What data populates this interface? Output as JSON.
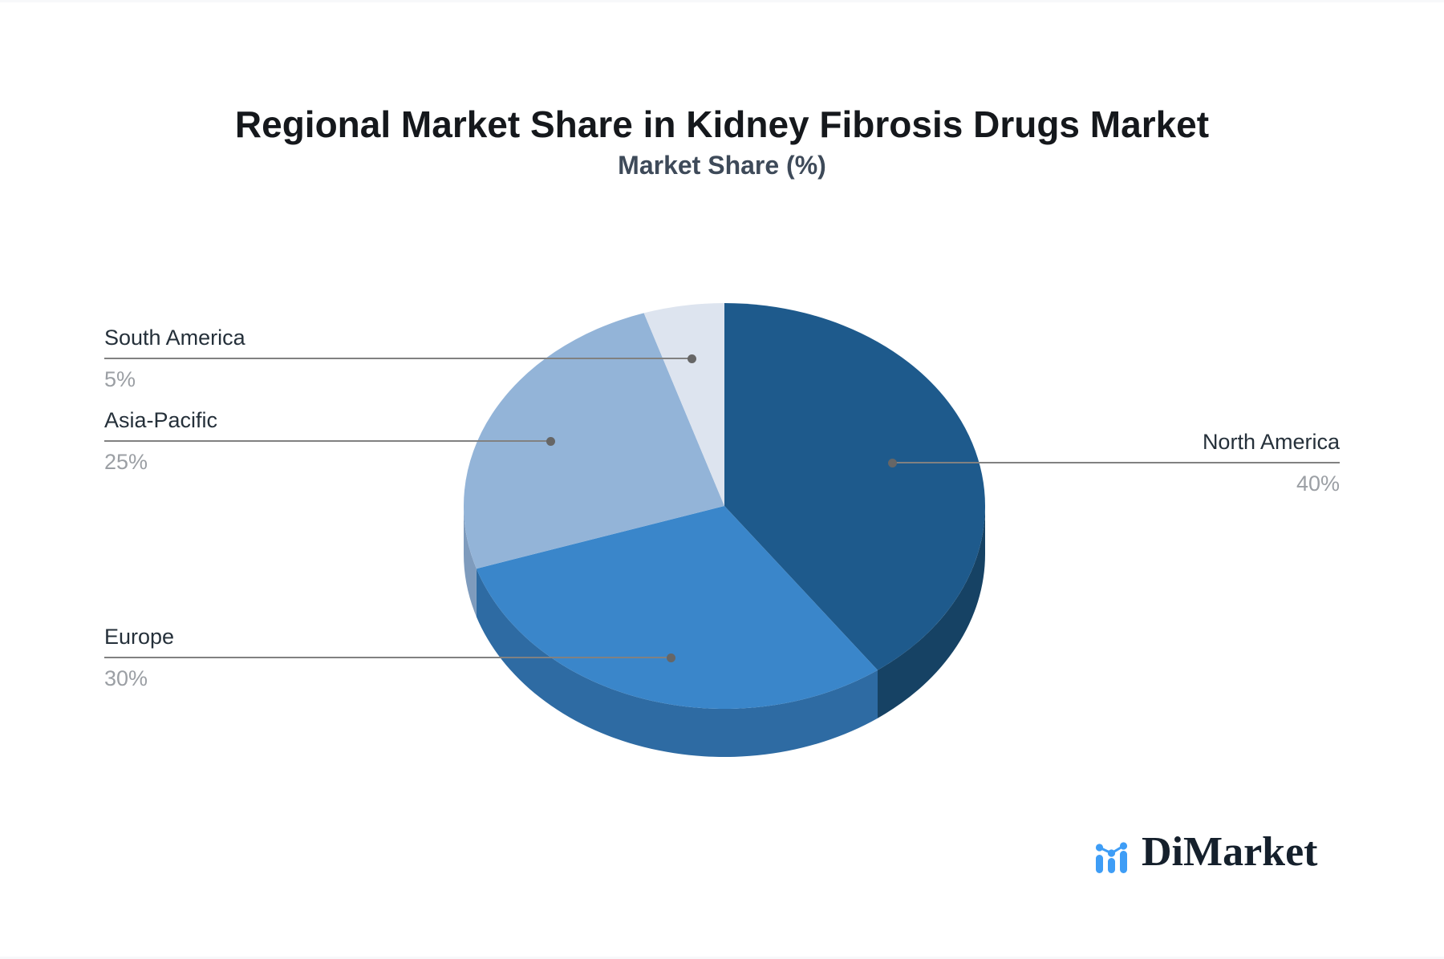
{
  "chart_data": {
    "type": "pie",
    "style": "3d",
    "title": "Regional Market Share in Kidney Fibrosis Drugs Market",
    "subtitle": "Market Share (%)",
    "unit": "%",
    "direction": "clockwise",
    "start_angle": "12-oclock",
    "legend_position": "callout-labels",
    "categories": [
      "North America",
      "Europe",
      "Asia-Pacific",
      "South America"
    ],
    "values": [
      40,
      30,
      25,
      5
    ],
    "percent_labels": [
      "40%",
      "30%",
      "25%",
      "5%"
    ],
    "slice_colors": [
      "#1E5A8C",
      "#3A86CA",
      "#93B4D8",
      "#DDE4EF"
    ],
    "slice_side_colors": [
      "#164264",
      "#2E6BA3",
      "#7E9BBD",
      "#C9D3E2"
    ],
    "callout_line_color": "#818181",
    "callout_dot_color": "#666666",
    "label_text_color": "#25303a",
    "percent_text_color": "#9b9fa4",
    "title_color": "#15181c",
    "subtitle_color": "#3e4a59"
  },
  "footer": {
    "brand": "DiMarket",
    "brand_text_color": "#15202c",
    "brand_icon": "bar-chart-trend-icon",
    "brand_icon_color": "#3E9DF6"
  }
}
